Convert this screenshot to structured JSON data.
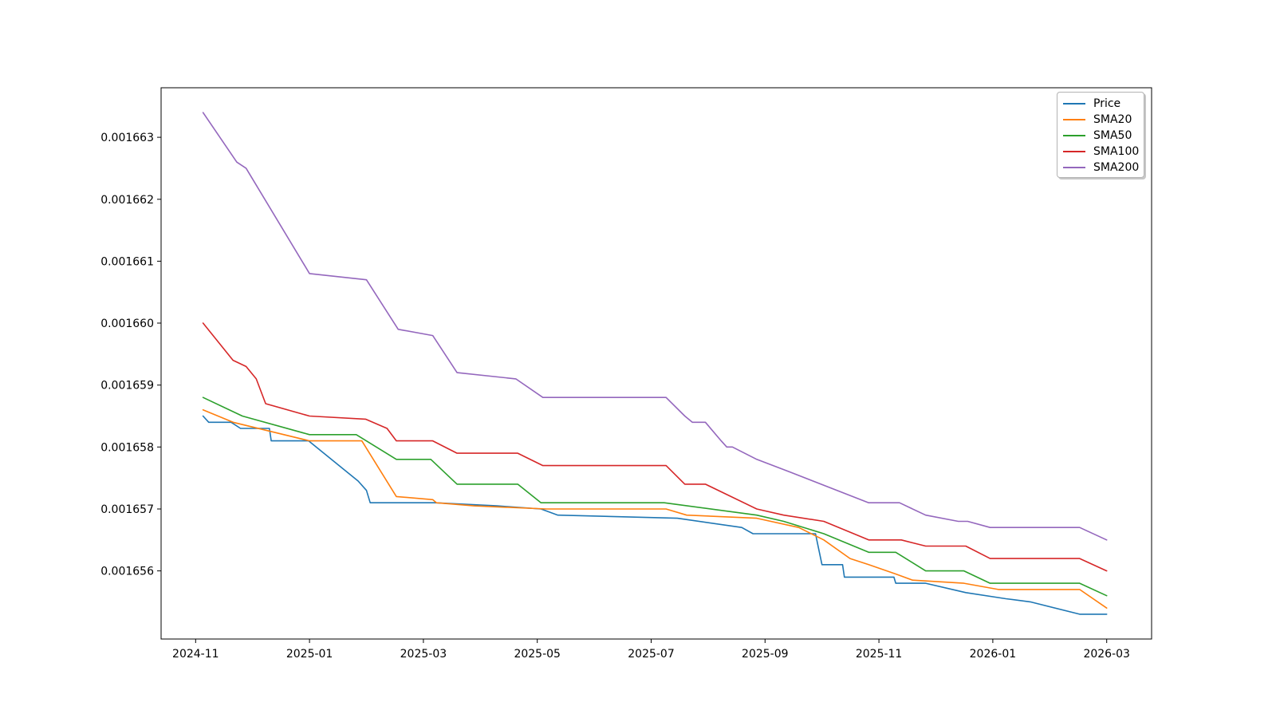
{
  "figure": {
    "background": "#ffffff"
  },
  "chart_data": {
    "type": "line",
    "title": "",
    "xlabel": "",
    "ylabel": "",
    "grid": false,
    "legend": {
      "position": "upper right"
    },
    "xlim_dates": [
      "2024-10-13",
      "2026-03-25"
    ],
    "ylim": [
      0.0016549,
      0.0016638
    ],
    "x_ticks": [
      {
        "date": "2024-11-01",
        "label": "2024-11"
      },
      {
        "date": "2025-01-01",
        "label": "2025-01"
      },
      {
        "date": "2025-03-01",
        "label": "2025-03"
      },
      {
        "date": "2025-05-01",
        "label": "2025-05"
      },
      {
        "date": "2025-07-01",
        "label": "2025-07"
      },
      {
        "date": "2025-09-01",
        "label": "2025-09"
      },
      {
        "date": "2025-11-01",
        "label": "2025-11"
      },
      {
        "date": "2026-01-01",
        "label": "2026-01"
      },
      {
        "date": "2026-03-01",
        "label": "2026-03"
      }
    ],
    "y_ticks": [
      {
        "value": 0.001663,
        "label": "0.001663"
      },
      {
        "value": 0.001662,
        "label": "0.001662"
      },
      {
        "value": 0.001661,
        "label": "0.001661"
      },
      {
        "value": 0.00166,
        "label": "0.001660"
      },
      {
        "value": 0.001659,
        "label": "0.001659"
      },
      {
        "value": 0.001658,
        "label": "0.001658"
      },
      {
        "value": 0.001657,
        "label": "0.001657"
      },
      {
        "value": 0.001656,
        "label": "0.001656"
      }
    ],
    "series": [
      {
        "name": "Price",
        "color": "#1f77b4",
        "points": [
          [
            "2024-11-05",
            0.0016585
          ],
          [
            "2024-11-08",
            0.0016584
          ],
          [
            "2024-11-20",
            0.0016584
          ],
          [
            "2024-11-25",
            0.0016583
          ],
          [
            "2024-12-10",
            0.0016583
          ],
          [
            "2024-12-11",
            0.0016581
          ],
          [
            "2024-12-31",
            0.0016581
          ],
          [
            "2025-01-27",
            0.00165745
          ],
          [
            "2025-02-01",
            0.0016573
          ],
          [
            "2025-02-03",
            0.0016571
          ],
          [
            "2025-03-07",
            0.0016571
          ],
          [
            "2025-04-10",
            0.00165705
          ],
          [
            "2025-05-03",
            0.001657
          ],
          [
            "2025-05-12",
            0.0016569
          ],
          [
            "2025-07-15",
            0.00165685
          ],
          [
            "2025-08-19",
            0.0016567
          ],
          [
            "2025-08-25",
            0.0016566
          ],
          [
            "2025-09-28",
            0.0016566
          ],
          [
            "2025-09-29",
            0.00165645
          ],
          [
            "2025-10-01",
            0.0016561
          ],
          [
            "2025-10-12",
            0.0016561
          ],
          [
            "2025-10-13",
            0.0016559
          ],
          [
            "2025-11-09",
            0.0016559
          ],
          [
            "2025-11-10",
            0.0016558
          ],
          [
            "2025-11-26",
            0.0016558
          ],
          [
            "2025-12-17",
            0.00165565
          ],
          [
            "2026-01-08",
            0.00165555
          ],
          [
            "2026-01-21",
            0.0016555
          ],
          [
            "2026-02-17",
            0.0016553
          ],
          [
            "2026-03-01",
            0.0016553
          ]
        ]
      },
      {
        "name": "SMA20",
        "color": "#ff7f0e",
        "points": [
          [
            "2024-11-05",
            0.0016586
          ],
          [
            "2024-11-21",
            0.0016584
          ],
          [
            "2025-01-01",
            0.0016581
          ],
          [
            "2025-01-29",
            0.0016581
          ],
          [
            "2025-02-17",
            0.0016572
          ],
          [
            "2025-03-06",
            0.00165715
          ],
          [
            "2025-03-08",
            0.0016571
          ],
          [
            "2025-03-28",
            0.00165705
          ],
          [
            "2025-05-06",
            0.001657
          ],
          [
            "2025-07-09",
            0.001657
          ],
          [
            "2025-07-20",
            0.0016569
          ],
          [
            "2025-08-27",
            0.00165685
          ],
          [
            "2025-09-19",
            0.0016567
          ],
          [
            "2025-10-02",
            0.0016565
          ],
          [
            "2025-10-16",
            0.0016562
          ],
          [
            "2025-10-26",
            0.0016561
          ],
          [
            "2025-11-10",
            0.00165595
          ],
          [
            "2025-11-19",
            0.00165585
          ],
          [
            "2025-12-16",
            0.0016558
          ],
          [
            "2026-01-04",
            0.0016557
          ],
          [
            "2026-02-17",
            0.0016557
          ],
          [
            "2026-03-01",
            0.0016554
          ]
        ]
      },
      {
        "name": "SMA50",
        "color": "#2ca02c",
        "points": [
          [
            "2024-11-05",
            0.0016588
          ],
          [
            "2024-11-26",
            0.0016585
          ],
          [
            "2025-01-01",
            0.0016582
          ],
          [
            "2025-01-26",
            0.0016582
          ],
          [
            "2025-02-17",
            0.0016578
          ],
          [
            "2025-03-05",
            0.0016578
          ],
          [
            "2025-03-19",
            0.0016574
          ],
          [
            "2025-04-21",
            0.0016574
          ],
          [
            "2025-05-03",
            0.0016571
          ],
          [
            "2025-07-08",
            0.0016571
          ],
          [
            "2025-08-27",
            0.0016569
          ],
          [
            "2025-09-11",
            0.0016568
          ],
          [
            "2025-10-02",
            0.0016566
          ],
          [
            "2025-10-26",
            0.0016563
          ],
          [
            "2025-11-10",
            0.0016563
          ],
          [
            "2025-11-26",
            0.001656
          ],
          [
            "2025-12-16",
            0.001656
          ],
          [
            "2025-12-30",
            0.0016558
          ],
          [
            "2026-02-17",
            0.0016558
          ],
          [
            "2026-03-01",
            0.0016556
          ]
        ]
      },
      {
        "name": "SMA100",
        "color": "#d62728",
        "points": [
          [
            "2024-11-05",
            0.00166
          ],
          [
            "2024-11-21",
            0.0016594
          ],
          [
            "2024-11-28",
            0.0016593
          ],
          [
            "2024-12-03",
            0.0016591
          ],
          [
            "2024-12-08",
            0.0016587
          ],
          [
            "2025-01-01",
            0.0016585
          ],
          [
            "2025-01-31",
            0.00165845
          ],
          [
            "2025-02-12",
            0.0016583
          ],
          [
            "2025-02-17",
            0.0016581
          ],
          [
            "2025-03-06",
            0.0016581
          ],
          [
            "2025-03-19",
            0.0016579
          ],
          [
            "2025-04-21",
            0.0016579
          ],
          [
            "2025-05-04",
            0.0016577
          ],
          [
            "2025-07-09",
            0.0016577
          ],
          [
            "2025-07-19",
            0.0016574
          ],
          [
            "2025-07-30",
            0.0016574
          ],
          [
            "2025-08-27",
            0.001657
          ],
          [
            "2025-09-11",
            0.0016569
          ],
          [
            "2025-10-02",
            0.0016568
          ],
          [
            "2025-10-26",
            0.0016565
          ],
          [
            "2025-11-13",
            0.0016565
          ],
          [
            "2025-11-26",
            0.0016564
          ],
          [
            "2025-12-17",
            0.0016564
          ],
          [
            "2025-12-30",
            0.0016562
          ],
          [
            "2026-02-17",
            0.0016562
          ],
          [
            "2026-03-01",
            0.001656
          ]
        ]
      },
      {
        "name": "SMA200",
        "color": "#9467bd",
        "points": [
          [
            "2024-11-05",
            0.0016634
          ],
          [
            "2024-11-23",
            0.0016626
          ],
          [
            "2024-11-28",
            0.0016625
          ],
          [
            "2025-01-01",
            0.0016608
          ],
          [
            "2025-02-01",
            0.0016607
          ],
          [
            "2025-02-18",
            0.0016599
          ],
          [
            "2025-03-06",
            0.0016598
          ],
          [
            "2025-03-19",
            0.0016592
          ],
          [
            "2025-04-20",
            0.0016591
          ],
          [
            "2025-05-04",
            0.0016588
          ],
          [
            "2025-07-09",
            0.0016588
          ],
          [
            "2025-07-19",
            0.0016585
          ],
          [
            "2025-07-23",
            0.0016584
          ],
          [
            "2025-07-30",
            0.0016584
          ],
          [
            "2025-08-08",
            0.0016581
          ],
          [
            "2025-08-11",
            0.001658
          ],
          [
            "2025-08-14",
            0.001658
          ],
          [
            "2025-08-27",
            0.0016578
          ],
          [
            "2025-09-14",
            0.0016576
          ],
          [
            "2025-10-26",
            0.0016571
          ],
          [
            "2025-11-12",
            0.0016571
          ],
          [
            "2025-11-26",
            0.0016569
          ],
          [
            "2025-12-13",
            0.0016568
          ],
          [
            "2025-12-18",
            0.0016568
          ],
          [
            "2025-12-30",
            0.0016567
          ],
          [
            "2026-02-17",
            0.0016567
          ],
          [
            "2026-03-01",
            0.0016565
          ]
        ]
      }
    ]
  }
}
